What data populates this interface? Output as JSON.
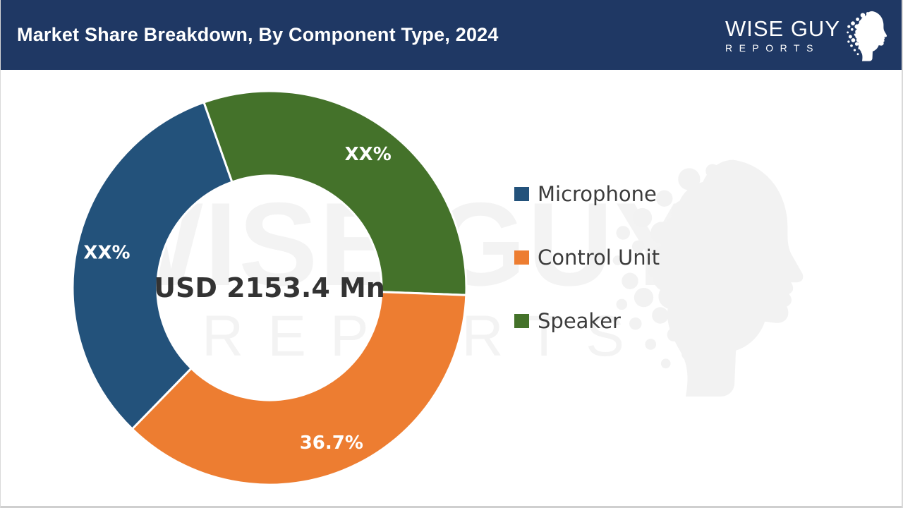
{
  "header": {
    "title": "Market Share Breakdown, By Component Type, 2024",
    "bg_color": "#1f3864",
    "logo": {
      "line1": "WISE GUY",
      "line2": "REPORTS"
    }
  },
  "watermark": {
    "word1": "WISE GUY",
    "word2": "REPORTS"
  },
  "legend": {
    "items": [
      {
        "label": "Microphone",
        "color": "#23527B"
      },
      {
        "label": "Control Unit",
        "color": "#ED7D31"
      },
      {
        "label": "Speaker",
        "color": "#44722A"
      }
    ]
  },
  "chart_data": {
    "type": "pie",
    "donut": true,
    "title": "Market Share Breakdown, By Component Type, 2024",
    "center_label": "USD 2153.4 Mn",
    "start_angle_deg": -19.5,
    "legend_position": "right",
    "segments": [
      {
        "name": "Speaker",
        "display_label": "XX%",
        "pct": 31.0,
        "color": "#44722A"
      },
      {
        "name": "Control Unit",
        "display_label": "36.7%",
        "pct": 36.7,
        "color": "#ED7D31"
      },
      {
        "name": "Microphone",
        "display_label": "XX%",
        "pct": 32.3,
        "color": "#23527B"
      }
    ]
  }
}
